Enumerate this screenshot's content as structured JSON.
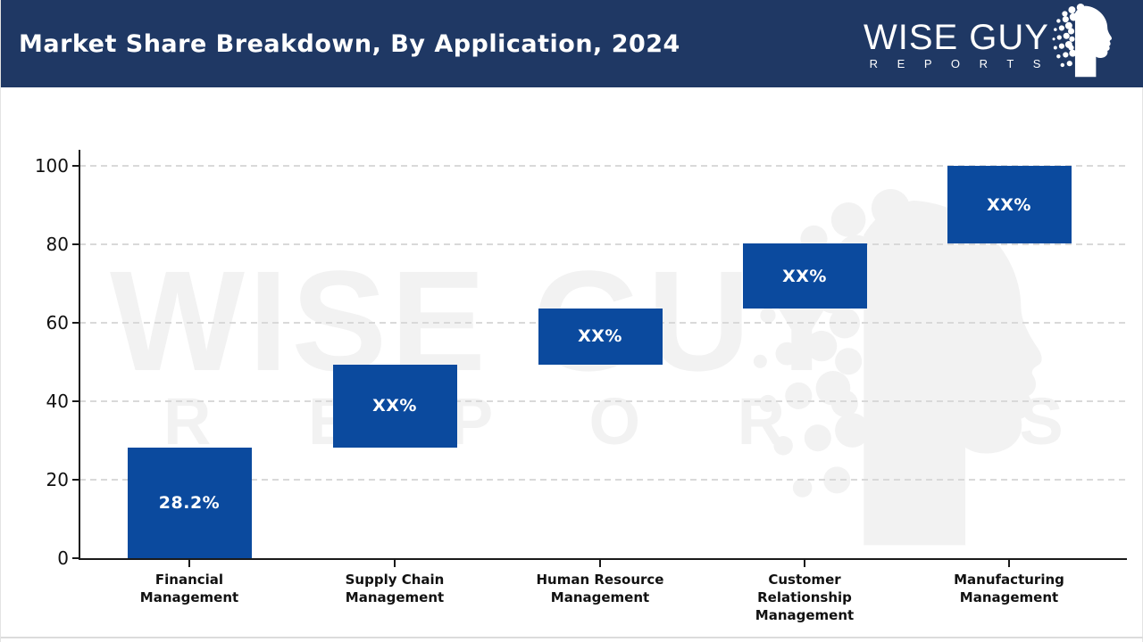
{
  "header": {
    "title": "Market Share Breakdown, By Application, 2024",
    "brand": {
      "line1": "WISE GUY",
      "line2": "R E P O R T S"
    }
  },
  "watermark": {
    "line1": "WISE GUY",
    "line2": "R E P O R T S"
  },
  "colors": {
    "header_bg": "#1f3864",
    "bar": "#0b4a9e",
    "gridline": "#d9d9d9",
    "axis": "#1a1a1a",
    "watermark": "#f2f2f2",
    "title_text": "#ffffff",
    "value_label_text": "#ffffff"
  },
  "chart_data": {
    "type": "bar",
    "subtype": "waterfall",
    "title": "Market Share Breakdown, By Application, 2024",
    "xlabel": "",
    "ylabel": "",
    "ylim": [
      0,
      100
    ],
    "yticks": [
      0,
      20,
      40,
      60,
      80,
      100
    ],
    "grid": "horizontal dashed",
    "legend": "none",
    "categories": [
      "Financial Management",
      "Supply Chain Management",
      "Human Resource Management",
      "Customer Relationship Management",
      "Manufacturing Management"
    ],
    "categories_lines": [
      [
        "Financial",
        "Management"
      ],
      [
        "Supply Chain",
        "Management"
      ],
      [
        "Human Resource",
        "Management"
      ],
      [
        "Customer",
        "Relationship",
        "Management"
      ],
      [
        "Manufacturing",
        "Management"
      ]
    ],
    "bars": [
      {
        "category": "Financial Management",
        "start": 0,
        "end": 28.2,
        "value": 28.2,
        "label": "28.2%"
      },
      {
        "category": "Supply Chain Management",
        "start": 28.2,
        "end": 49.4,
        "value": 21.2,
        "label": "XX%"
      },
      {
        "category": "Human Resource Management",
        "start": 49.4,
        "end": 63.6,
        "value": 14.2,
        "label": "XX%"
      },
      {
        "category": "Customer Relationship Management",
        "start": 63.6,
        "end": 80.2,
        "value": 16.6,
        "label": "XX%"
      },
      {
        "category": "Manufacturing Management",
        "start": 80.2,
        "end": 100,
        "value": 19.8,
        "label": "XX%"
      }
    ]
  }
}
